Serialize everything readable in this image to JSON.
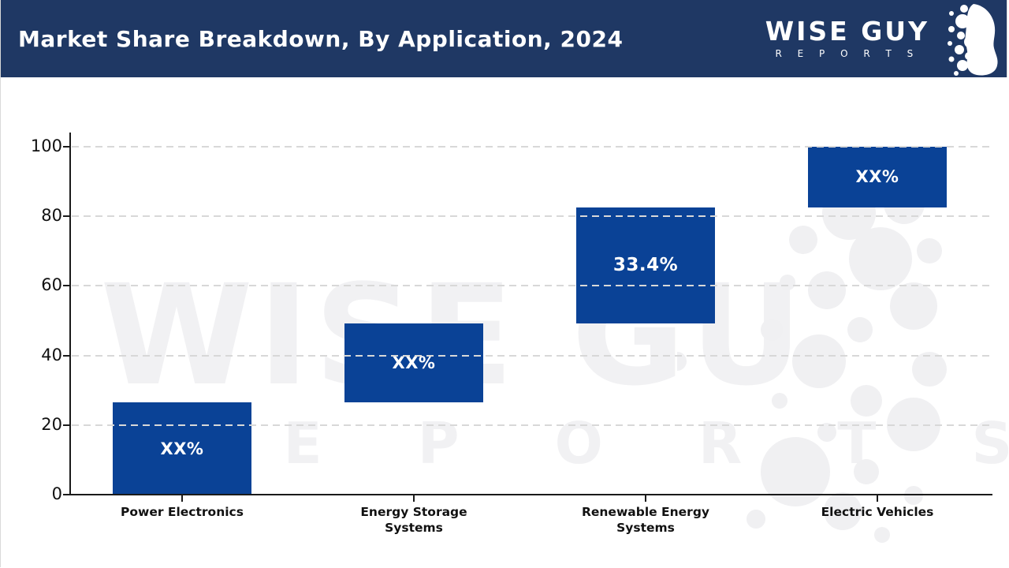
{
  "header": {
    "title": "Market Share Breakdown, By Application, 2024",
    "logo": {
      "line1": "WISE GUY",
      "line2": "R E P O R T S"
    },
    "colors": {
      "header_bg": "#1f3864",
      "logo_text": "#ffffff"
    }
  },
  "watermark": {
    "line1": "WISE GU",
    "line2": "R E P O R T S"
  },
  "chart_data": {
    "type": "bar",
    "subtype": "floating-waterfall",
    "title": "Market Share Breakdown, By Application, 2024",
    "categories": [
      "Power Electronics",
      "Energy Storage Systems",
      "Renewable Energy Systems",
      "Electric Vehicles"
    ],
    "category_label_lines": [
      [
        "Power Electronics"
      ],
      [
        "Energy Storage",
        "Systems"
      ],
      [
        "Renewable Energy",
        "Systems"
      ],
      [
        "Electric Vehicles"
      ]
    ],
    "segments": [
      {
        "category": "Power Electronics",
        "base": 0,
        "top": 26.5,
        "value": 26.5,
        "label": "XX%"
      },
      {
        "category": "Energy Storage Systems",
        "base": 26.5,
        "top": 49.2,
        "value": 22.7,
        "label": "XX%"
      },
      {
        "category": "Renewable Energy Systems",
        "base": 49.2,
        "top": 82.6,
        "value": 33.4,
        "label": "33.4%"
      },
      {
        "category": "Electric Vehicles",
        "base": 82.6,
        "top": 100,
        "value": 17.4,
        "label": "XX%"
      }
    ],
    "data_labels": [
      "XX%",
      "XX%",
      "33.4%",
      "XX%"
    ],
    "xlabel": "",
    "ylabel": "",
    "ylim": [
      0,
      100
    ],
    "yticks": [
      0,
      20,
      40,
      60,
      80,
      100
    ],
    "grid": true,
    "gridline_style": "dashed",
    "legend": "none",
    "bar_color": "#0a4296",
    "gridline_color": "#d8d8d8",
    "axis_color": "#1a1a1a",
    "label_color": "#ffffff"
  }
}
